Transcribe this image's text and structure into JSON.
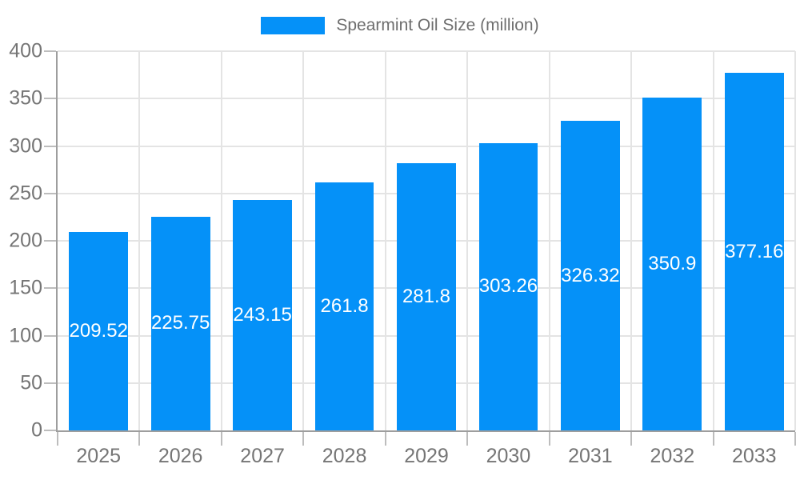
{
  "chart_data": {
    "type": "bar",
    "series_name": "Spearmint Oil Size (million)",
    "categories": [
      "2025",
      "2026",
      "2027",
      "2028",
      "2029",
      "2030",
      "2031",
      "2032",
      "2033"
    ],
    "values": [
      209.52,
      225.75,
      243.15,
      261.8,
      281.8,
      303.26,
      326.32,
      350.9,
      377.16
    ],
    "value_labels": [
      "209.52",
      "225.75",
      "243.15",
      "261.8",
      "281.8",
      "303.26",
      "326.32",
      "350.9",
      "377.16"
    ],
    "title": "",
    "xlabel": "",
    "ylabel": "",
    "ylim": [
      0,
      400
    ],
    "y_ticks": [
      0,
      50,
      100,
      150,
      200,
      250,
      300,
      350,
      400
    ],
    "grid": {
      "horizontal": true,
      "vertical": true
    },
    "legend_position": "top-center",
    "value_label_position": "center-of-bar",
    "colors": {
      "bar": "#0591f8",
      "value_label": "#ffffff",
      "axis_text": "#757575",
      "legend_text": "#6e6e6e",
      "gridline": "#e4e4e4",
      "axis_line": "#9e9e9e",
      "tick": "#bdbdbd",
      "background": "#ffffff"
    }
  }
}
